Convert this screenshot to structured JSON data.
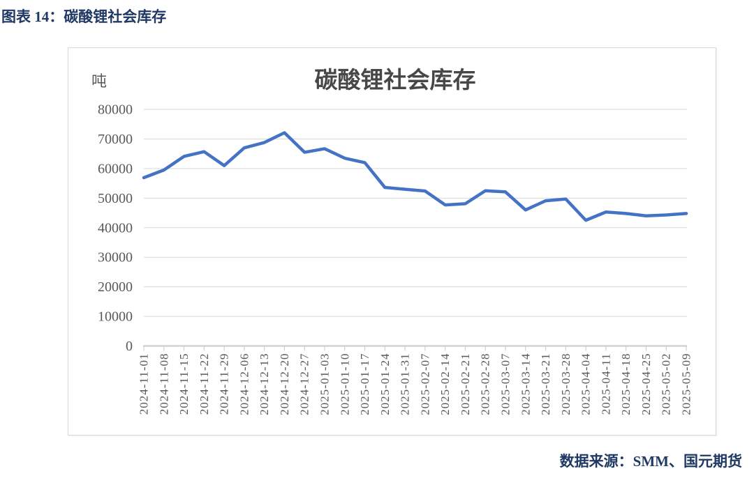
{
  "page": {
    "figure_caption": "图表 14：碳酸锂社会库存",
    "source_note": "数据来源：SMM、国元期货"
  },
  "colors": {
    "heading_text": "#1F3864",
    "panel_border": "#D9D9D9",
    "gridline": "#D9D9D9",
    "axis_line": "#C9C9C9",
    "axis_text": "#595959",
    "chart_title_text": "#474747",
    "series_line": "#4472C4"
  },
  "chart_data": {
    "type": "line",
    "title": "碳酸锂社会库存",
    "unit_label": "吨",
    "xlabel": "",
    "ylabel": "吨",
    "ylim": [
      0,
      80000
    ],
    "ytick_step": 10000,
    "grid": true,
    "legend": "none",
    "x_tick_rotation": -90,
    "categories": [
      "2024-11-01",
      "2024-11-08",
      "2024-11-15",
      "2024-11-22",
      "2024-11-29",
      "2024-12-06",
      "2024-12-13",
      "2024-12-20",
      "2024-12-27",
      "2025-01-03",
      "2025-01-10",
      "2025-01-17",
      "2025-01-24",
      "2025-01-31",
      "2025-02-07",
      "2025-02-14",
      "2025-02-21",
      "2025-02-28",
      "2025-03-07",
      "2025-03-14",
      "2025-03-21",
      "2025-03-28",
      "2025-04-04",
      "2025-04-11",
      "2025-04-18",
      "2025-04-25",
      "2025-05-02",
      "2025-05-09"
    ],
    "values": [
      56900,
      59500,
      64100,
      65700,
      61000,
      67000,
      68800,
      72100,
      65500,
      66700,
      63500,
      62000,
      53600,
      53000,
      52400,
      47700,
      48100,
      52500,
      52100,
      46000,
      49100,
      49700,
      42500,
      45300,
      44800,
      44000,
      44300,
      44800
    ]
  }
}
